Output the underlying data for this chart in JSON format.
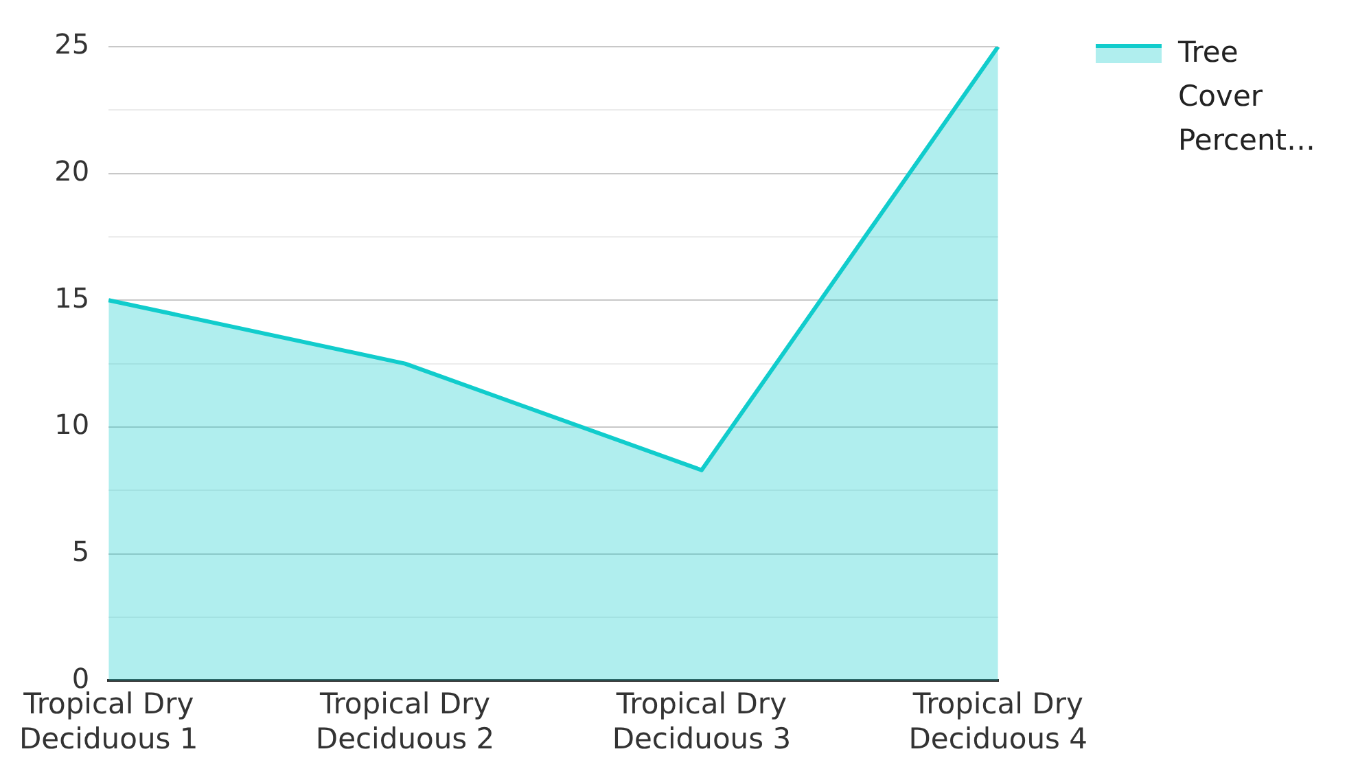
{
  "chart_data": {
    "type": "area",
    "categories": [
      "Tropical Dry Deciduous 1",
      "Tropical Dry Deciduous 2",
      "Tropical Dry Deciduous 3",
      "Tropical Dry Deciduous 4"
    ],
    "series": [
      {
        "name": "Tree Cover Percent…",
        "color": "#11cccc",
        "values": [
          15,
          12.5,
          8.3,
          25
        ]
      }
    ],
    "ylim": [
      0,
      25
    ],
    "yticks": [
      0,
      {
        "value": 2.5,
        "label": null
      },
      5,
      {
        "value": 7.5,
        "label": null
      },
      10,
      {
        "value": 12.5,
        "label": null
      },
      15,
      {
        "value": 17.5,
        "label": null
      },
      20,
      {
        "value": 22.5,
        "label": null
      },
      25
    ],
    "grid": "y",
    "legend": "top right",
    "marker": "none"
  }
}
